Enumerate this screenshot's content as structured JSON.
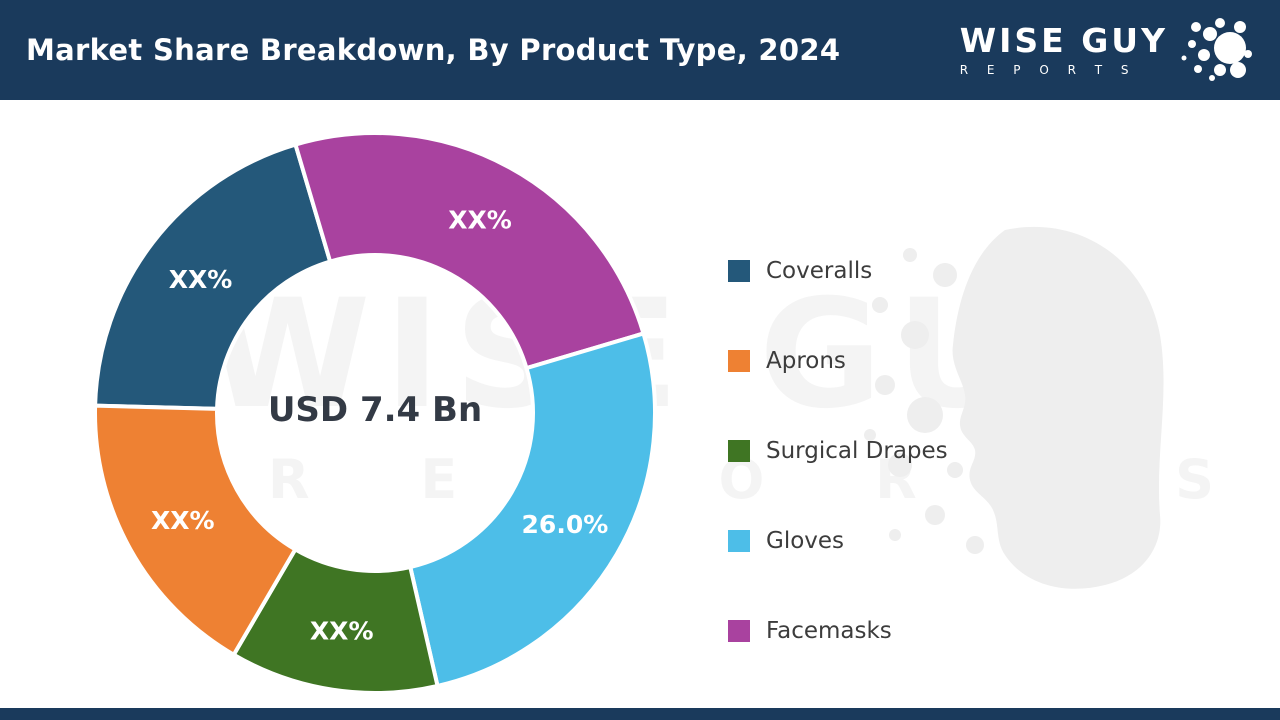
{
  "header": {
    "title": "Market Share Breakdown, By Product Type, 2024",
    "bg_color": "#1a3a5c",
    "logo": {
      "line1": "WISE GUY",
      "line2": "R E P O R T S"
    }
  },
  "watermark": {
    "line1": "WISE GUY",
    "line2": "R E P O R T S"
  },
  "chart_data": {
    "type": "pie",
    "subtype": "donut",
    "title": "Market Share Breakdown, By Product Type, 2024",
    "center_label": "USD 7.4 Bn",
    "start_angle_deg": 271.5,
    "legend_position": "right",
    "segments": [
      {
        "name": "Coveralls",
        "value": 20,
        "label": "XX%",
        "color": "#24587a"
      },
      {
        "name": "Facemasks",
        "value": 25,
        "label": "XX%",
        "color": "#a9429f"
      },
      {
        "name": "Gloves",
        "value": 26,
        "label": "26.0%",
        "color": "#4dbee8"
      },
      {
        "name": "Surgical Drapes",
        "value": 12,
        "label": "XX%",
        "color": "#3f7523"
      },
      {
        "name": "Aprons",
        "value": 17,
        "label": "XX%",
        "color": "#ee8133"
      }
    ],
    "legend_order": [
      "Coveralls",
      "Aprons",
      "Surgical Drapes",
      "Gloves",
      "Facemasks"
    ]
  }
}
